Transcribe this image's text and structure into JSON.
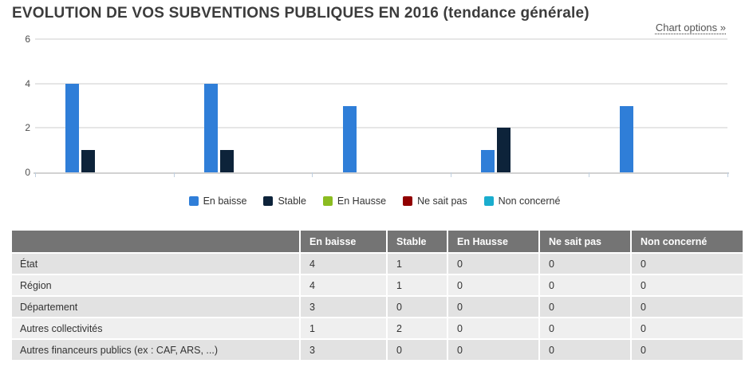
{
  "header": {
    "title": "EVOLUTION DE VOS SUBVENTIONS PUBLIQUES EN 2016 (tendance générale)",
    "chart_options_label": "Chart options »"
  },
  "chart_data": {
    "type": "bar",
    "title": "EVOLUTION DE VOS SUBVENTIONS PUBLIQUES EN 2016 (tendance générale)",
    "categories": [
      "État",
      "Région",
      "Département",
      "Autres collectivités",
      "Autres financeurs publics (ex : CAF, ARS, ...)"
    ],
    "series": [
      {
        "name": "En baisse",
        "color": "#2f7ed8",
        "values": [
          4,
          4,
          3,
          1,
          3
        ]
      },
      {
        "name": "Stable",
        "color": "#0d233a",
        "values": [
          1,
          1,
          0,
          2,
          0
        ]
      },
      {
        "name": "En Hausse",
        "color": "#8bbc21",
        "values": [
          0,
          0,
          0,
          0,
          0
        ]
      },
      {
        "name": "Ne sait pas",
        "color": "#910000",
        "values": [
          0,
          0,
          0,
          0,
          0
        ]
      },
      {
        "name": "Non concerné",
        "color": "#1aadce",
        "values": [
          0,
          0,
          0,
          0,
          0
        ]
      }
    ],
    "xlabel": "",
    "ylabel": "",
    "ylim": [
      0,
      6
    ],
    "yticks": [
      0,
      2,
      4,
      6
    ],
    "x_tick_labels_visible": false,
    "grid": true,
    "legend_position": "bottom"
  },
  "table": {
    "headers": [
      "",
      "En baisse",
      "Stable",
      "En Hausse",
      "Ne sait pas",
      "Non concerné"
    ],
    "rows": [
      {
        "label": "État",
        "values": [
          "4",
          "1",
          "0",
          "0",
          "0"
        ]
      },
      {
        "label": "Région",
        "values": [
          "4",
          "1",
          "0",
          "0",
          "0"
        ]
      },
      {
        "label": "Département",
        "values": [
          "3",
          "0",
          "0",
          "0",
          "0"
        ]
      },
      {
        "label": "Autres collectivités",
        "values": [
          "1",
          "2",
          "0",
          "0",
          "0"
        ]
      },
      {
        "label": "Autres financeurs publics (ex : CAF, ARS, ...)",
        "values": [
          "3",
          "0",
          "0",
          "0",
          "0"
        ]
      }
    ]
  },
  "colors": {
    "table_header_bg": "#747474",
    "row_odd_bg": "#e2e2e2",
    "row_even_bg": "#efefef",
    "gridline": "#e6e6e6",
    "axis_tick": "#c0d0e0"
  }
}
